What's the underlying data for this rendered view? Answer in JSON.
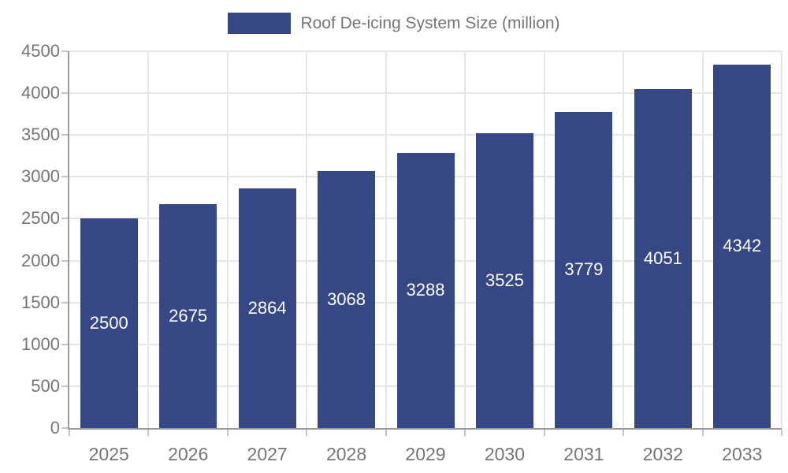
{
  "chart_data": {
    "type": "bar",
    "title": "",
    "legend_label": "Roof De-icing System Size (million)",
    "legend_position": "top",
    "categories": [
      "2025",
      "2026",
      "2027",
      "2028",
      "2029",
      "2030",
      "2031",
      "2032",
      "2033"
    ],
    "values": [
      2500,
      2675,
      2864,
      3068,
      3288,
      3525,
      3779,
      4051,
      4342
    ],
    "xlabel": "",
    "ylabel": "",
    "ylim": [
      0,
      4500
    ],
    "yticks": [
      0,
      500,
      1000,
      1500,
      2000,
      2500,
      3000,
      3500,
      4000,
      4500
    ],
    "grid": true,
    "bar_color": "#364786",
    "value_label_color": "#ffffff",
    "grid_color": "#e6e6e6",
    "axis_color": "#9a9a9a",
    "tick_label_color": "#757575"
  }
}
